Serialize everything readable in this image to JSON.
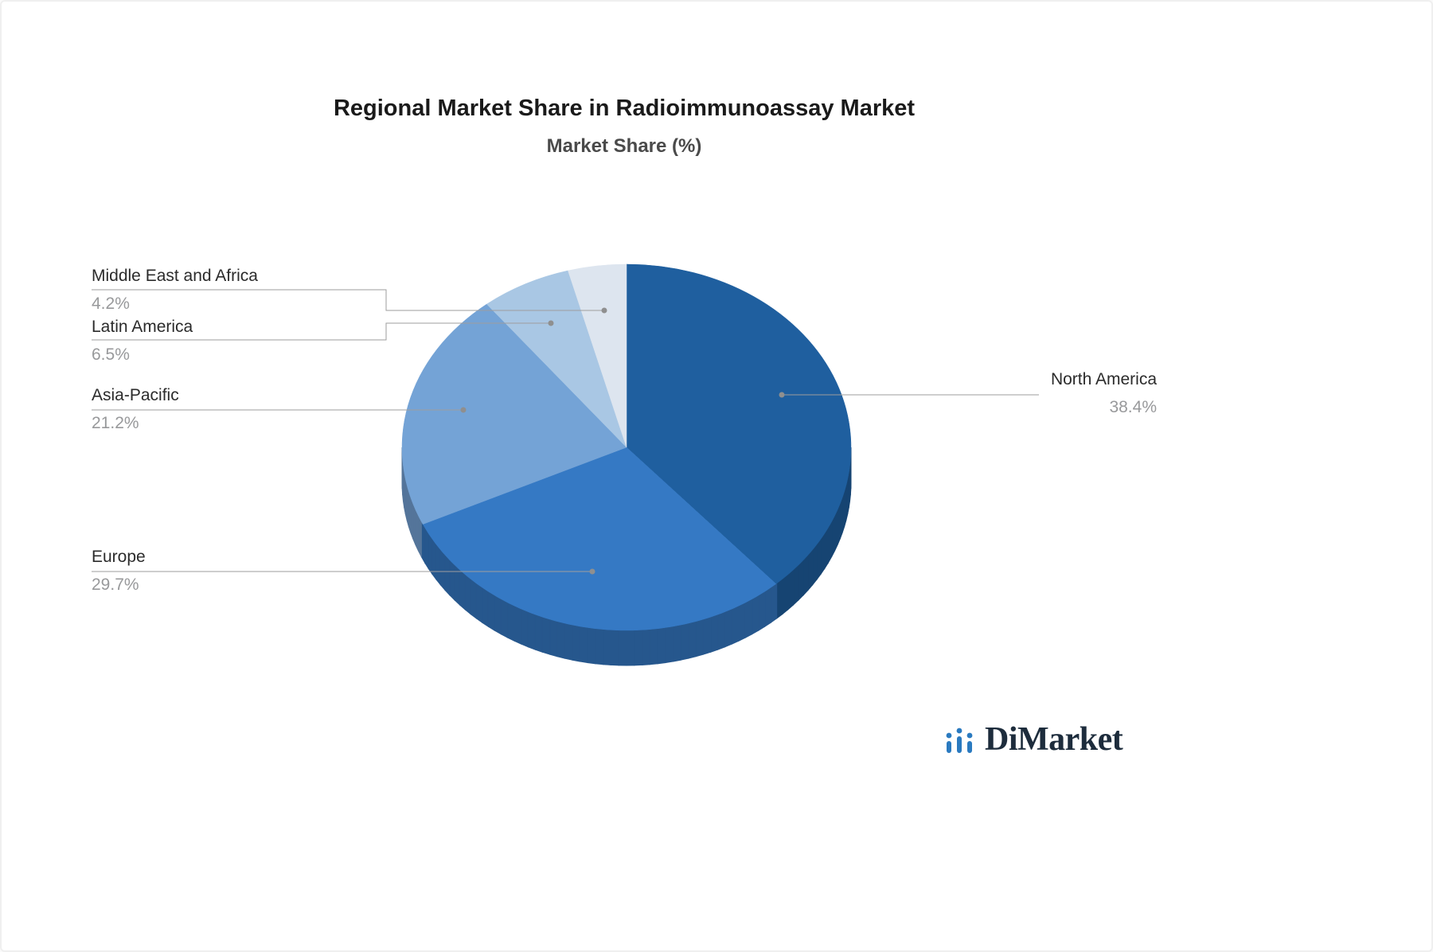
{
  "header": {
    "title": "Regional Market Share in Radioimmunoassay Market",
    "subtitle": "Market Share (%)"
  },
  "branding": {
    "name": "DiMarket",
    "icon_color": "#2a7ac0",
    "text_color": "#1d2c3c"
  },
  "chart_data": {
    "type": "pie",
    "style": "3d-pie",
    "title": "Regional Market Share in Radioimmunoassay Market",
    "subtitle": "Market Share (%)",
    "unit": "%",
    "start_angle_deg": 0,
    "direction": "clockwise",
    "legend_position": "callout-labels",
    "slices": [
      {
        "label": "North America",
        "value": 38.4,
        "color": "#1f5f9f"
      },
      {
        "label": "Europe",
        "value": 29.7,
        "color": "#3579c4"
      },
      {
        "label": "Asia-Pacific",
        "value": 21.2,
        "color": "#74a3d6"
      },
      {
        "label": "Latin America",
        "value": 6.5,
        "color": "#a9c7e4"
      },
      {
        "label": "Middle East and Africa",
        "value": 4.2,
        "color": "#dde5ef"
      }
    ],
    "label_name_color": "#2b2b2b",
    "label_value_color": "#98999b",
    "connector_color": "#9e9e9e"
  }
}
